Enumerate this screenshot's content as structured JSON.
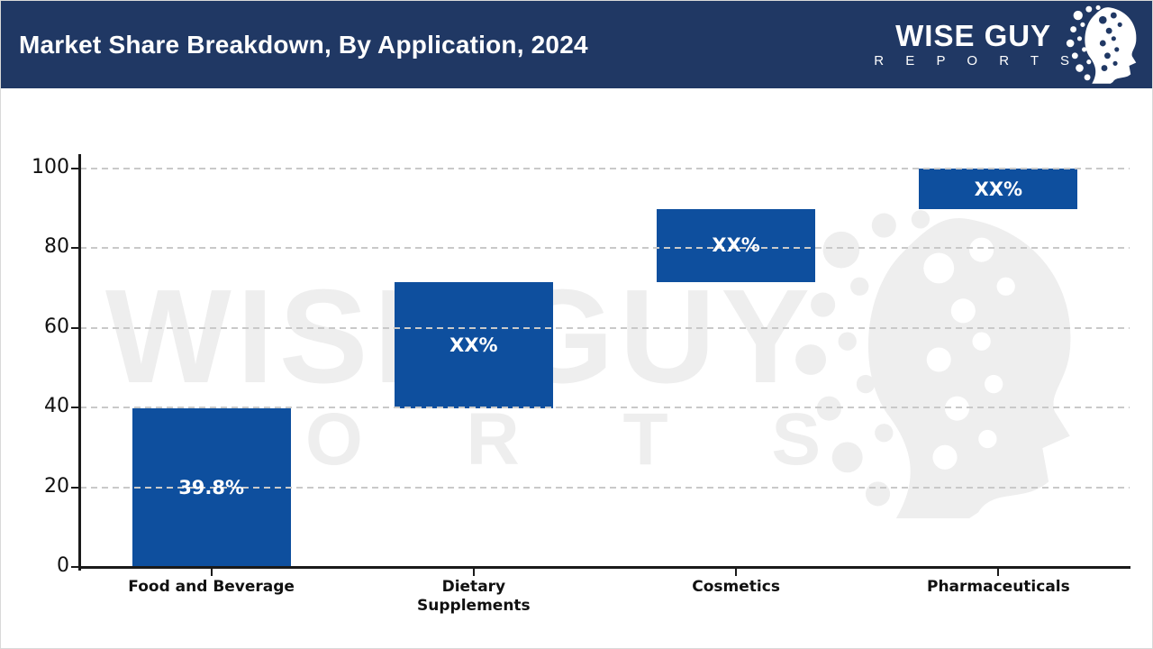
{
  "header": {
    "title": "Market Share Breakdown, By Application, 2024",
    "logo": {
      "primary": "WISE GUY",
      "secondary": "REPORTS",
      "secondary_display": "R E P O R T S"
    }
  },
  "watermark": {
    "primary": "WISE GUY",
    "secondary_display": "P O R T S"
  },
  "colors": {
    "header_bg": "#203864",
    "bar": "#0e4f9e",
    "grid": "#c9c9c9",
    "axis": "#1a1a1a",
    "bar_label": "#ffffff",
    "watermark": "#eeeeee",
    "border": "#d9d9d9"
  },
  "chart_data": {
    "type": "bar",
    "variant": "waterfall",
    "title": "Market Share Breakdown, By Application, 2024",
    "categories": [
      "Food and Beverage",
      "Dietary Supplements",
      "Cosmetics",
      "Pharmaceuticals"
    ],
    "categories_display_lines": [
      [
        "Food and Beverage"
      ],
      [
        "Dietary",
        "Supplements"
      ],
      [
        "Cosmetics"
      ],
      [
        "Pharmaceuticals"
      ]
    ],
    "series": [
      {
        "name": "Market Share",
        "segments": [
          {
            "category": "Food and Beverage",
            "start": 0,
            "end": 39.8,
            "value_label": "39.8%"
          },
          {
            "category": "Dietary Supplements",
            "start": 39.8,
            "end": 71.6,
            "value_label": "XX%"
          },
          {
            "category": "Cosmetics",
            "start": 71.6,
            "end": 89.8,
            "value_label": "XX%"
          },
          {
            "category": "Pharmaceuticals",
            "start": 89.8,
            "end": 100,
            "value_label": "XX%"
          }
        ]
      }
    ],
    "xlabel": "",
    "ylabel": "",
    "ylim": [
      0,
      100
    ],
    "yticks": [
      0,
      20,
      40,
      60,
      80,
      100
    ],
    "grid": "horizontal-dashed",
    "legend": "none",
    "bar_color": "#0e4f9e",
    "value_label_color": "#ffffff"
  }
}
